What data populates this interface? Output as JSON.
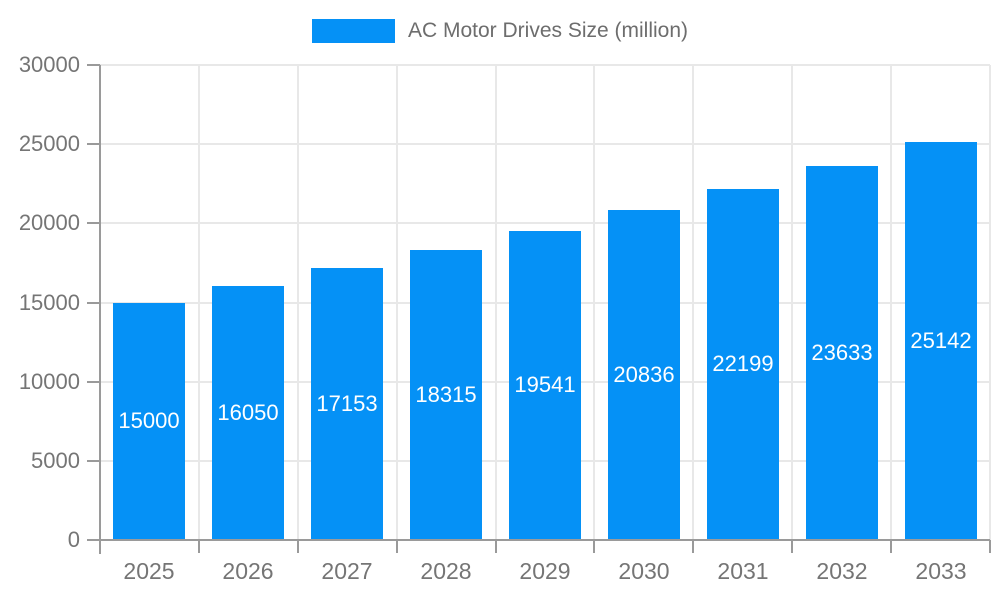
{
  "colors": {
    "bar": "#0591f6",
    "axis": "#9a9a9a",
    "grid": "#e8e8e8",
    "tick_text": "#757575",
    "bar_label_text": "#ffffff",
    "legend_text": "#6d6d6d",
    "background": "#ffffff"
  },
  "chart_data": {
    "type": "bar",
    "title": "AC Motor Drives Size (million)",
    "legend_label": "AC Motor Drives Size (million)",
    "legend_position": "top-center",
    "categories": [
      "2025",
      "2026",
      "2027",
      "2028",
      "2029",
      "2030",
      "2031",
      "2032",
      "2033"
    ],
    "values": [
      15000,
      16050,
      17153,
      18315,
      19541,
      20836,
      22199,
      23633,
      25142
    ],
    "series": [
      {
        "name": "AC Motor Drives Size (million)",
        "values": [
          15000,
          16050,
          17153,
          18315,
          19541,
          20836,
          22199,
          23633,
          25142
        ]
      }
    ],
    "xlabel": "",
    "ylabel": "",
    "ylim": [
      0,
      30000
    ],
    "yticks": [
      0,
      5000,
      10000,
      15000,
      20000,
      25000,
      30000
    ],
    "grid": true,
    "bar_value_labels": "centered-inside-white"
  }
}
